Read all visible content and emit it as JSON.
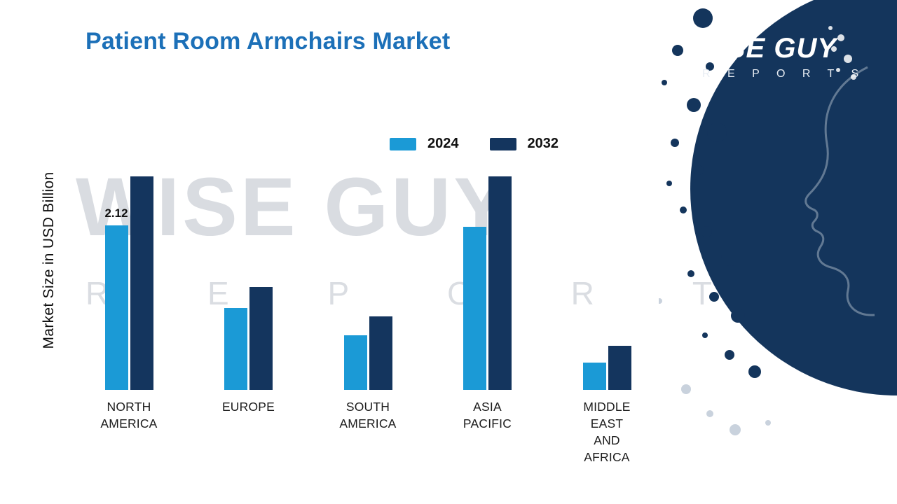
{
  "title": "Patient Room Armchairs Market",
  "y_axis_label": "Market Size in USD Billion",
  "watermark": {
    "line1": "WISE GUY",
    "line2": "R E P O R T S"
  },
  "logo": {
    "line1": "WISE GUY",
    "line2": "R  E  P  O  R  T  S"
  },
  "colors": {
    "title_blue": "#1c70b8",
    "series_2024": "#1b9ad6",
    "series_2032": "#14355e",
    "brand_navy": "#14355c",
    "watermark_gray": "#d9dce1"
  },
  "legend": [
    {
      "label": "2024",
      "color": "#1b9ad6"
    },
    {
      "label": "2032",
      "color": "#14355e"
    }
  ],
  "chart_data": {
    "type": "bar",
    "title": "Patient Room Armchairs Market",
    "ylabel": "Market Size in USD Billion",
    "ylim": [
      0,
      3
    ],
    "grid": false,
    "legend_position": "top-center",
    "categories": [
      "NORTH AMERICA",
      "EUROPE",
      "SOUTH AMERICA",
      "ASIA PACIFIC",
      "MIDDLE EAST AND AFRICA"
    ],
    "category_display": [
      "NORTH\nAMERICA",
      "EUROPE",
      "SOUTH\nAMERICA",
      "ASIA\nPACIFIC",
      "MIDDLE\nEAST\nAND\nAFRICA"
    ],
    "series": [
      {
        "name": "2024",
        "color": "#1b9ad6",
        "values": [
          2.12,
          1.05,
          0.7,
          2.1,
          0.35
        ]
      },
      {
        "name": "2032",
        "color": "#14355e",
        "values": [
          2.75,
          1.32,
          0.95,
          2.75,
          0.57
        ]
      }
    ],
    "bar_labels": [
      {
        "category": 0,
        "series": 0,
        "text": "2.12"
      }
    ]
  }
}
